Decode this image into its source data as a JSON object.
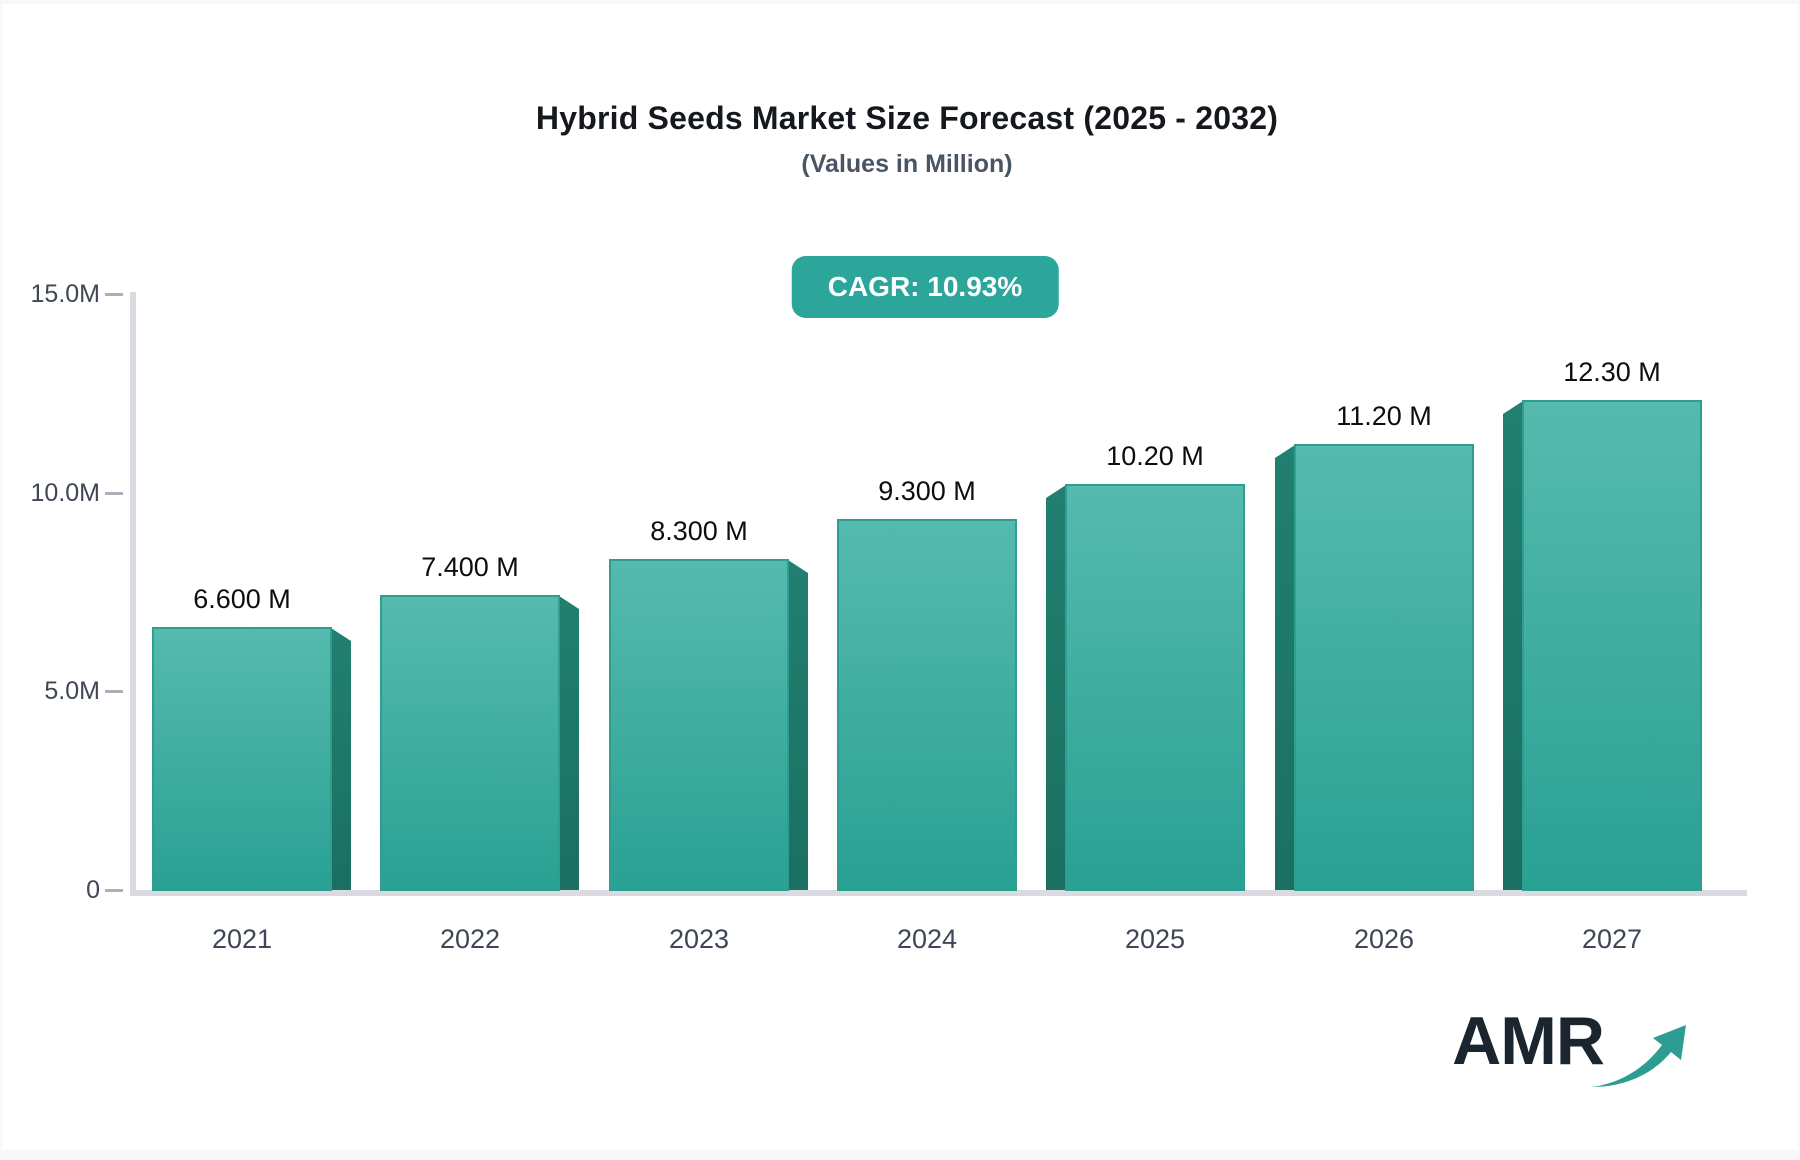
{
  "page": {
    "title": "Hybrid Seeds Market Size Forecast (2025 - 2032)",
    "subtitle": "(Values in Million)",
    "cagr_badge_label": "CAGR: 10.93%"
  },
  "chart_data": {
    "type": "bar",
    "title": "Hybrid Seeds Market Size Forecast (2025 - 2032)",
    "subtitle": "(Values in Million)",
    "annotation": "CAGR: 10.93%",
    "unit": "Million",
    "categories": [
      "2021",
      "2022",
      "2023",
      "2024",
      "2025",
      "2026",
      "2027"
    ],
    "values": [
      6.6,
      7.4,
      8.3,
      9.3,
      10.2,
      11.2,
      12.3
    ],
    "value_labels": [
      "6.600 M",
      "7.400 M",
      "8.300 M",
      "9.300 M",
      "10.20 M",
      "11.20 M",
      "12.30 M"
    ],
    "y_axis": {
      "min": 0,
      "max": 15,
      "ticks": [
        {
          "label": "15.0M",
          "value": 15
        },
        {
          "label": "10.0M",
          "value": 10
        },
        {
          "label": "5.0M",
          "value": 5
        },
        {
          "label": "0",
          "value": 0
        }
      ]
    },
    "grid": false,
    "legend": false,
    "style": "3d-extruded-bars",
    "colors": {
      "bar_face_top": "#56BAAE",
      "bar_face_bottom": "#29A193",
      "bar_face_edge": "#2F9E90",
      "bar_side_top": "#228070",
      "bar_side_bottom": "#1A6F60",
      "badge_background": "#2CA69B",
      "axis_line": "#D9DBE0",
      "tick_text": "#3D4755",
      "value_text": "#0D0D0D"
    }
  },
  "logo": {
    "text": "AMR",
    "arrow_color": "#2D9C92",
    "text_color": "#1B2530"
  }
}
